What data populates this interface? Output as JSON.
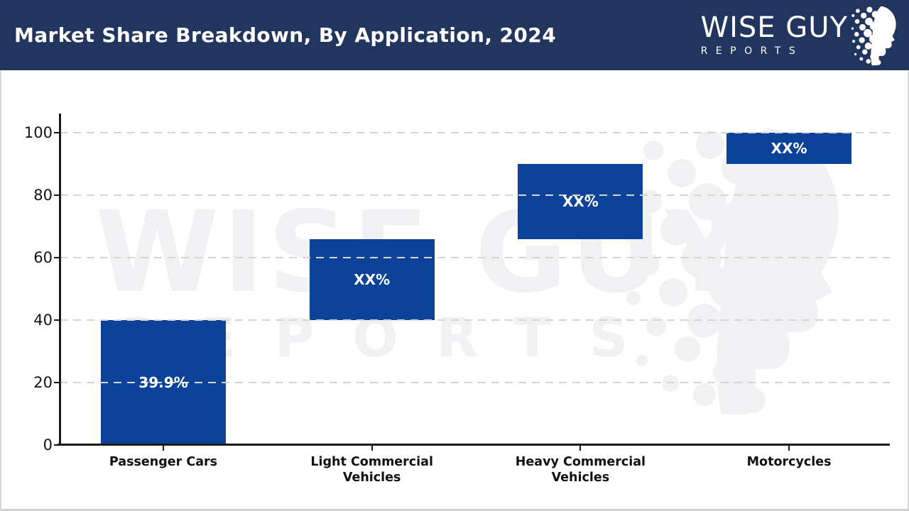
{
  "header": {
    "title": "Market Share Breakdown, By Application, 2024",
    "bg_color": "#22355f",
    "logo": {
      "line1": "WISE GUY",
      "line2": "REPORTS",
      "icon": "dot-face-icon"
    }
  },
  "watermark": {
    "line1": "WISE GUY",
    "line2": "REPORTS",
    "icon": "dot-face-icon",
    "color": "#f1f1f3"
  },
  "chart_data": {
    "type": "bar",
    "subtype": "waterfall",
    "title": "Market Share Breakdown, By Application, 2024",
    "categories": [
      "Passenger Cars",
      "Light Commercial Vehicles",
      "Heavy Commercial Vehicles",
      "Motorcycles"
    ],
    "series": [
      {
        "name": "Market Share",
        "segments": [
          {
            "category": "Passenger Cars",
            "start": 0,
            "end": 39.9,
            "label": "39.9%"
          },
          {
            "category": "Light Commercial Vehicles",
            "start": 39.9,
            "end": 66,
            "label": "XX%"
          },
          {
            "category": "Heavy Commercial Vehicles",
            "start": 66,
            "end": 90,
            "label": "XX%"
          },
          {
            "category": "Motorcycles",
            "start": 90,
            "end": 100,
            "label": "XX%"
          }
        ]
      }
    ],
    "xlabel": "",
    "ylabel": "",
    "yticks": [
      0,
      20,
      40,
      60,
      80,
      100
    ],
    "ylim": [
      0,
      106
    ],
    "grid": {
      "horizontal": true,
      "style": "dashed",
      "above_bars": true
    },
    "legend": "none",
    "colors": {
      "bar": "#0d4299",
      "bar_value_text": "#ffffff",
      "grid": "#d5d5d5",
      "axis": "#1a1a1a",
      "tick_text": "#141414",
      "header_bg": "#22355f",
      "watermark": "#f1f1f3"
    }
  }
}
